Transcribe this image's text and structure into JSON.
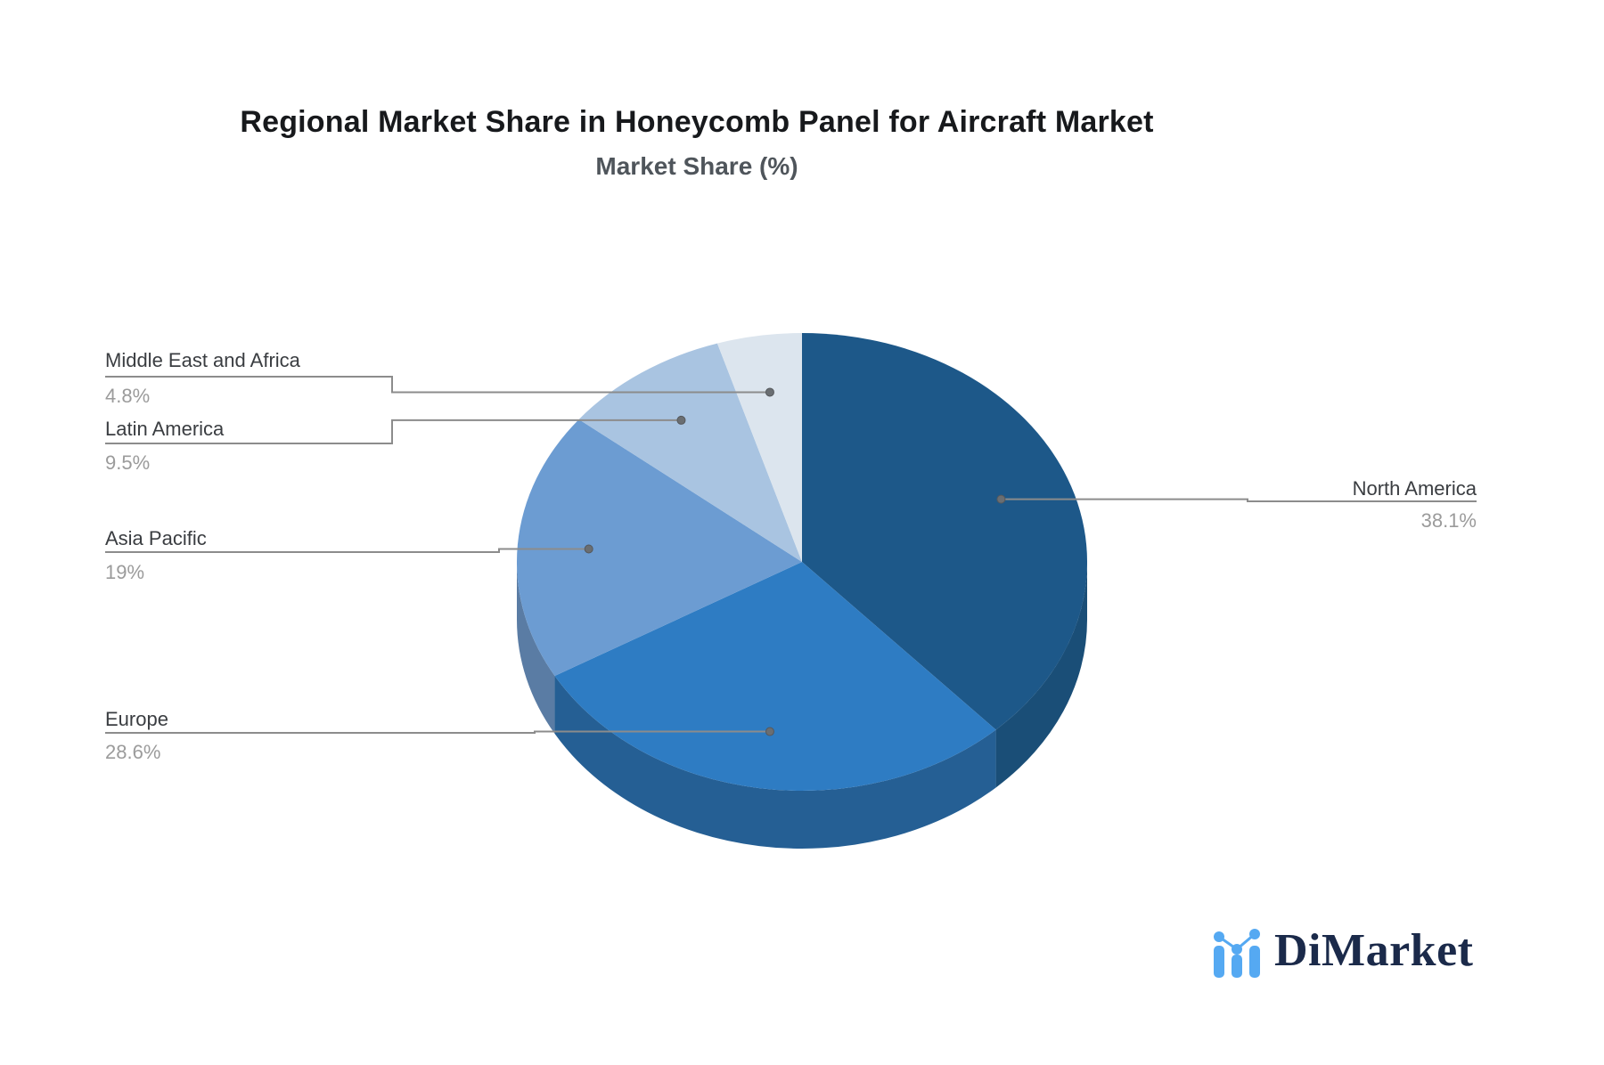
{
  "header": {
    "title": "Regional Market Share in Honeycomb Panel for Aircraft Market",
    "subtitle": "Market Share (%)"
  },
  "chart_data": {
    "type": "pie",
    "title": "Regional Market Share in Honeycomb Panel for Aircraft Market",
    "unit": "%",
    "start_angle": "12 o'clock",
    "direction": "clockwise",
    "style": "3d-pie",
    "legend_position": "callout-labels",
    "slices": [
      {
        "name": "North America",
        "value": 38.1,
        "display_value": "38.1%",
        "color": "#1D5889",
        "side_color": "#1A4E77"
      },
      {
        "name": "Europe",
        "value": 28.6,
        "display_value": "28.6%",
        "color": "#2E7CC3",
        "side_color": "#255F94"
      },
      {
        "name": "Asia Pacific",
        "value": 19,
        "display_value": "19%",
        "color": "#6C9CD2",
        "side_color": "#5A7CA4"
      },
      {
        "name": "Latin America",
        "value": 9.5,
        "display_value": "9.5%",
        "color": "#A9C4E1",
        "side_color": "#93A9BF"
      },
      {
        "name": "Middle East and Africa",
        "value": 4.8,
        "display_value": "4.8%",
        "color": "#DCE5EE",
        "side_color": "#B9C3CE"
      }
    ],
    "leader_line_color": "#8c8c8c",
    "label_color": "#3a3d41",
    "value_color": "#9b9b9b"
  },
  "footer": {
    "logo_text": "DiMarket",
    "logo_icon_color": "#55a9f2"
  }
}
